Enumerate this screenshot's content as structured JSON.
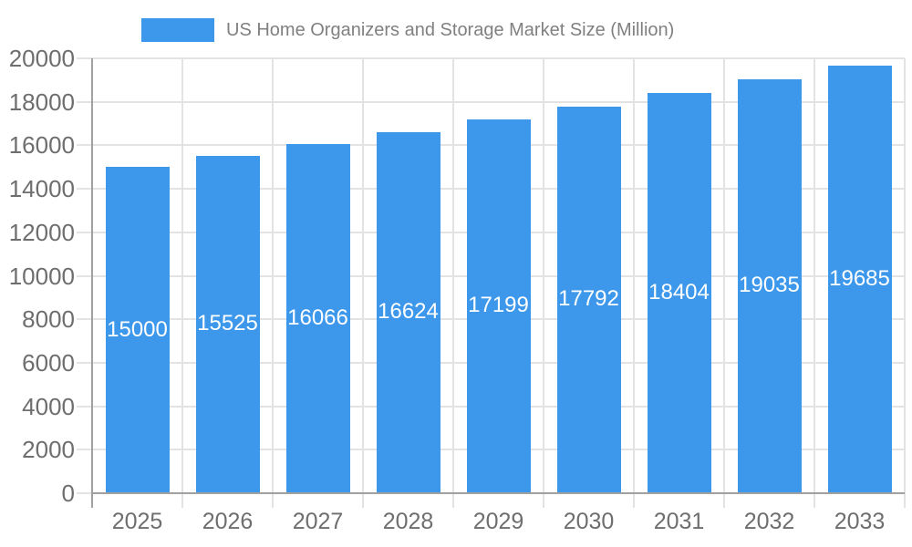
{
  "chart_data": {
    "type": "bar",
    "title": "US Home Organizers and Storage Market Size (Million)",
    "legend_entries": [
      "US Home Organizers and Storage Market Size (Million)"
    ],
    "legend_position": "top",
    "categories": [
      "2025",
      "2026",
      "2027",
      "2028",
      "2029",
      "2030",
      "2031",
      "2032",
      "2033"
    ],
    "values": [
      15000,
      15525,
      16066,
      16624,
      17199,
      17792,
      18404,
      19035,
      19685
    ],
    "xlabel": "",
    "ylabel": "",
    "ylim": [
      0,
      20000
    ],
    "yticks": [
      0,
      2000,
      4000,
      6000,
      8000,
      10000,
      12000,
      14000,
      16000,
      18000,
      20000
    ],
    "grid": true,
    "value_labels_shown": true,
    "colors": {
      "bar": "#3D98EB",
      "value_label": "#FFFFFF",
      "axis_text": "#6E6E6E",
      "legend_text": "#808080",
      "gridline": "#E3E3E3",
      "axis_line": "#A0A0A0",
      "background": "#FFFFFF"
    }
  }
}
